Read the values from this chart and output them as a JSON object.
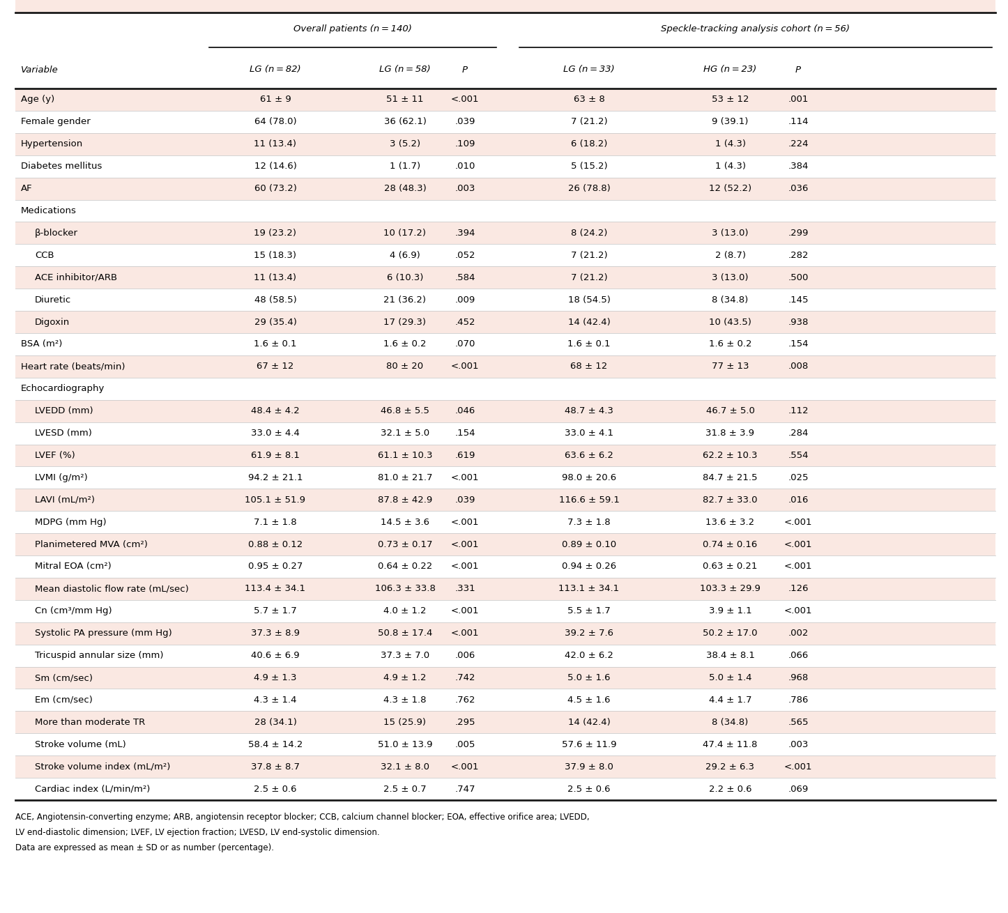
{
  "rows": [
    {
      "var": "Age (y)",
      "v1": "61 ± 9",
      "v2": "51 ± 11",
      "p1": "<.001",
      "v3": "63 ± 8",
      "v4": "53 ± 12",
      "p2": ".001",
      "indent": false,
      "section": false,
      "shaded": true
    },
    {
      "var": "Female gender",
      "v1": "64 (78.0)",
      "v2": "36 (62.1)",
      "p1": ".039",
      "v3": "7 (21.2)",
      "v4": "9 (39.1)",
      "p2": ".114",
      "indent": false,
      "section": false,
      "shaded": false
    },
    {
      "var": "Hypertension",
      "v1": "11 (13.4)",
      "v2": "3 (5.2)",
      "p1": ".109",
      "v3": "6 (18.2)",
      "v4": "1 (4.3)",
      "p2": ".224",
      "indent": false,
      "section": false,
      "shaded": true
    },
    {
      "var": "Diabetes mellitus",
      "v1": "12 (14.6)",
      "v2": "1 (1.7)",
      "p1": ".010",
      "v3": "5 (15.2)",
      "v4": "1 (4.3)",
      "p2": ".384",
      "indent": false,
      "section": false,
      "shaded": false
    },
    {
      "var": "AF",
      "v1": "60 (73.2)",
      "v2": "28 (48.3)",
      "p1": ".003",
      "v3": "26 (78.8)",
      "v4": "12 (52.2)",
      "p2": ".036",
      "indent": false,
      "section": false,
      "shaded": true
    },
    {
      "var": "Medications",
      "v1": "",
      "v2": "",
      "p1": "",
      "v3": "",
      "v4": "",
      "p2": "",
      "indent": false,
      "section": true,
      "shaded": false
    },
    {
      "var": "β-blocker",
      "v1": "19 (23.2)",
      "v2": "10 (17.2)",
      "p1": ".394",
      "v3": "8 (24.2)",
      "v4": "3 (13.0)",
      "p2": ".299",
      "indent": true,
      "section": false,
      "shaded": true
    },
    {
      "var": "CCB",
      "v1": "15 (18.3)",
      "v2": "4 (6.9)",
      "p1": ".052",
      "v3": "7 (21.2)",
      "v4": "2 (8.7)",
      "p2": ".282",
      "indent": true,
      "section": false,
      "shaded": false
    },
    {
      "var": "ACE inhibitor/ARB",
      "v1": "11 (13.4)",
      "v2": "6 (10.3)",
      "p1": ".584",
      "v3": "7 (21.2)",
      "v4": "3 (13.0)",
      "p2": ".500",
      "indent": true,
      "section": false,
      "shaded": true
    },
    {
      "var": "Diuretic",
      "v1": "48 (58.5)",
      "v2": "21 (36.2)",
      "p1": ".009",
      "v3": "18 (54.5)",
      "v4": "8 (34.8)",
      "p2": ".145",
      "indent": true,
      "section": false,
      "shaded": false
    },
    {
      "var": "Digoxin",
      "v1": "29 (35.4)",
      "v2": "17 (29.3)",
      "p1": ".452",
      "v3": "14 (42.4)",
      "v4": "10 (43.5)",
      "p2": ".938",
      "indent": true,
      "section": false,
      "shaded": true
    },
    {
      "var": "BSA (m²)",
      "v1": "1.6 ± 0.1",
      "v2": "1.6 ± 0.2",
      "p1": ".070",
      "v3": "1.6 ± 0.1",
      "v4": "1.6 ± 0.2",
      "p2": ".154",
      "indent": false,
      "section": false,
      "shaded": false
    },
    {
      "var": "Heart rate (beats/min)",
      "v1": "67 ± 12",
      "v2": "80 ± 20",
      "p1": "<.001",
      "v3": "68 ± 12",
      "v4": "77 ± 13",
      "p2": ".008",
      "indent": false,
      "section": false,
      "shaded": true
    },
    {
      "var": "Echocardiography",
      "v1": "",
      "v2": "",
      "p1": "",
      "v3": "",
      "v4": "",
      "p2": "",
      "indent": false,
      "section": true,
      "shaded": false
    },
    {
      "var": "LVEDD (mm)",
      "v1": "48.4 ± 4.2",
      "v2": "46.8 ± 5.5",
      "p1": ".046",
      "v3": "48.7 ± 4.3",
      "v4": "46.7 ± 5.0",
      "p2": ".112",
      "indent": true,
      "section": false,
      "shaded": true
    },
    {
      "var": "LVESD (mm)",
      "v1": "33.0 ± 4.4",
      "v2": "32.1 ± 5.0",
      "p1": ".154",
      "v3": "33.0 ± 4.1",
      "v4": "31.8 ± 3.9",
      "p2": ".284",
      "indent": true,
      "section": false,
      "shaded": false
    },
    {
      "var": "LVEF (%)",
      "v1": "61.9 ± 8.1",
      "v2": "61.1 ± 10.3",
      "p1": ".619",
      "v3": "63.6 ± 6.2",
      "v4": "62.2 ± 10.3",
      "p2": ".554",
      "indent": true,
      "section": false,
      "shaded": true
    },
    {
      "var": "LVMI (g/m²)",
      "v1": "94.2 ± 21.1",
      "v2": "81.0 ± 21.7",
      "p1": "<.001",
      "v3": "98.0 ± 20.6",
      "v4": "84.7 ± 21.5",
      "p2": ".025",
      "indent": true,
      "section": false,
      "shaded": false
    },
    {
      "var": "LAVI (mL/m²)",
      "v1": "105.1 ± 51.9",
      "v2": "87.8 ± 42.9",
      "p1": ".039",
      "v3": "116.6 ± 59.1",
      "v4": "82.7 ± 33.0",
      "p2": ".016",
      "indent": true,
      "section": false,
      "shaded": true
    },
    {
      "var": "MDPG (mm Hg)",
      "v1": "7.1 ± 1.8",
      "v2": "14.5 ± 3.6",
      "p1": "<.001",
      "v3": "7.3 ± 1.8",
      "v4": "13.6 ± 3.2",
      "p2": "<.001",
      "indent": true,
      "section": false,
      "shaded": false
    },
    {
      "var": "Planimetered MVA (cm²)",
      "v1": "0.88 ± 0.12",
      "v2": "0.73 ± 0.17",
      "p1": "<.001",
      "v3": "0.89 ± 0.10",
      "v4": "0.74 ± 0.16",
      "p2": "<.001",
      "indent": true,
      "section": false,
      "shaded": true
    },
    {
      "var": "Mitral EOA (cm²)",
      "v1": "0.95 ± 0.27",
      "v2": "0.64 ± 0.22",
      "p1": "<.001",
      "v3": "0.94 ± 0.26",
      "v4": "0.63 ± 0.21",
      "p2": "<.001",
      "indent": true,
      "section": false,
      "shaded": false
    },
    {
      "var": "Mean diastolic flow rate (mL/sec)",
      "v1": "113.4 ± 34.1",
      "v2": "106.3 ± 33.8",
      "p1": ".331",
      "v3": "113.1 ± 34.1",
      "v4": "103.3 ± 29.9",
      "p2": ".126",
      "indent": true,
      "section": false,
      "shaded": true
    },
    {
      "var": "Cn (cm³/mm Hg)",
      "v1": "5.7 ± 1.7",
      "v2": "4.0 ± 1.2",
      "p1": "<.001",
      "v3": "5.5 ± 1.7",
      "v4": "3.9 ± 1.1",
      "p2": "<.001",
      "indent": true,
      "section": false,
      "shaded": false
    },
    {
      "var": "Systolic PA pressure (mm Hg)",
      "v1": "37.3 ± 8.9",
      "v2": "50.8 ± 17.4",
      "p1": "<.001",
      "v3": "39.2 ± 7.6",
      "v4": "50.2 ± 17.0",
      "p2": ".002",
      "indent": true,
      "section": false,
      "shaded": true
    },
    {
      "var": "Tricuspid annular size (mm)",
      "v1": "40.6 ± 6.9",
      "v2": "37.3 ± 7.0",
      "p1": ".006",
      "v3": "42.0 ± 6.2",
      "v4": "38.4 ± 8.1",
      "p2": ".066",
      "indent": true,
      "section": false,
      "shaded": false
    },
    {
      "var": "Sm (cm/sec)",
      "v1": "4.9 ± 1.3",
      "v2": "4.9 ± 1.2",
      "p1": ".742",
      "v3": "5.0 ± 1.6",
      "v4": "5.0 ± 1.4",
      "p2": ".968",
      "indent": true,
      "section": false,
      "shaded": true
    },
    {
      "var": "Em (cm/sec)",
      "v1": "4.3 ± 1.4",
      "v2": "4.3 ± 1.8",
      "p1": ".762",
      "v3": "4.5 ± 1.6",
      "v4": "4.4 ± 1.7",
      "p2": ".786",
      "indent": true,
      "section": false,
      "shaded": false
    },
    {
      "var": "More than moderate TR",
      "v1": "28 (34.1)",
      "v2": "15 (25.9)",
      "p1": ".295",
      "v3": "14 (42.4)",
      "v4": "8 (34.8)",
      "p2": ".565",
      "indent": true,
      "section": false,
      "shaded": true
    },
    {
      "var": "Stroke volume (mL)",
      "v1": "58.4 ± 14.2",
      "v2": "51.0 ± 13.9",
      "p1": ".005",
      "v3": "57.6 ± 11.9",
      "v4": "47.4 ± 11.8",
      "p2": ".003",
      "indent": true,
      "section": false,
      "shaded": false
    },
    {
      "var": "Stroke volume index (mL/m²)",
      "v1": "37.8 ± 8.7",
      "v2": "32.1 ± 8.0",
      "p1": "<.001",
      "v3": "37.9 ± 8.0",
      "v4": "29.2 ± 6.3",
      "p2": "<.001",
      "indent": true,
      "section": false,
      "shaded": true
    },
    {
      "var": "Cardiac index (L/min/m²)",
      "v1": "2.5 ± 0.6",
      "v2": "2.5 ± 0.7",
      "p1": ".747",
      "v3": "2.5 ± 0.6",
      "v4": "2.2 ± 0.6",
      "p2": ".069",
      "indent": true,
      "section": false,
      "shaded": false
    }
  ],
  "footnote_lines": [
    "ACE, Angiotensin-converting enzyme; ARB, angiotensin receptor blocker; CCB, calcium channel blocker; EOA, effective orifice area; LVEDD,",
    "LV end-diastolic dimension; LVEF, LV ejection fraction; LVESD, LV end-systolic dimension.",
    "Data are expressed as mean ± SD or as number (percentage)."
  ],
  "shaded_color": "#FAE8E2",
  "white_color": "#FFFFFF",
  "header_shaded_color": "#FAE8E2",
  "line_color_thick": "#1a1a1a",
  "line_color_thin": "#cccccc",
  "text_color": "#000000",
  "fontsize_header": 9.5,
  "fontsize_data": 9.5,
  "fontsize_footnote": 8.5,
  "col_group1_label": "Overall patients (n = 140)",
  "col_group2_label": "Speckle-tracking analysis cohort (n = 56)",
  "subheaders": [
    "Variable",
    "LG (n = 82)",
    "LG (n = 58)",
    "P",
    "LG (n = 33)",
    "HG (n = 23)",
    "P"
  ]
}
